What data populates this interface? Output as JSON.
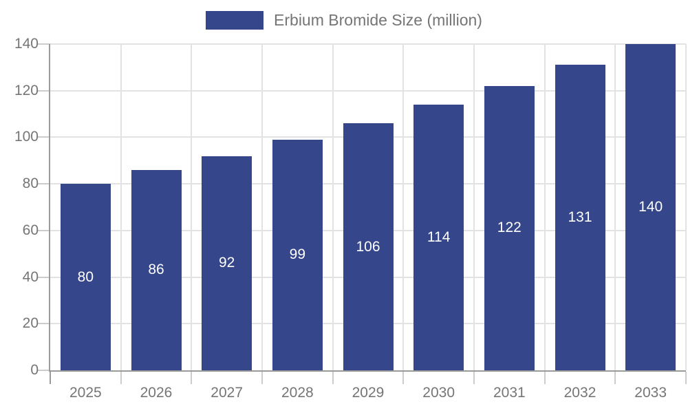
{
  "chart_data": {
    "type": "bar",
    "title": "Erbium Bromide Size (million)",
    "legend_position": "top",
    "categories": [
      "2025",
      "2026",
      "2027",
      "2028",
      "2029",
      "2030",
      "2031",
      "2032",
      "2033"
    ],
    "series": [
      {
        "name": "Erbium Bromide Size (million)",
        "values": [
          80,
          86,
          92,
          99,
          106,
          114,
          122,
          131,
          140
        ]
      }
    ],
    "xlabel": "",
    "ylabel": "",
    "ylim": [
      0,
      140
    ],
    "ytick_step": 20,
    "yticks": [
      0,
      20,
      40,
      60,
      80,
      100,
      120,
      140
    ],
    "grid": true,
    "value_labels": "inside-center",
    "colors": {
      "bar": "#35478A",
      "value_label": "#ffffff",
      "axis_text": "#757575",
      "grid_line": "#e2e2e2",
      "tick_line": "#cccccc",
      "axis_line": "#9a9a9a",
      "background": "#ffffff"
    }
  }
}
